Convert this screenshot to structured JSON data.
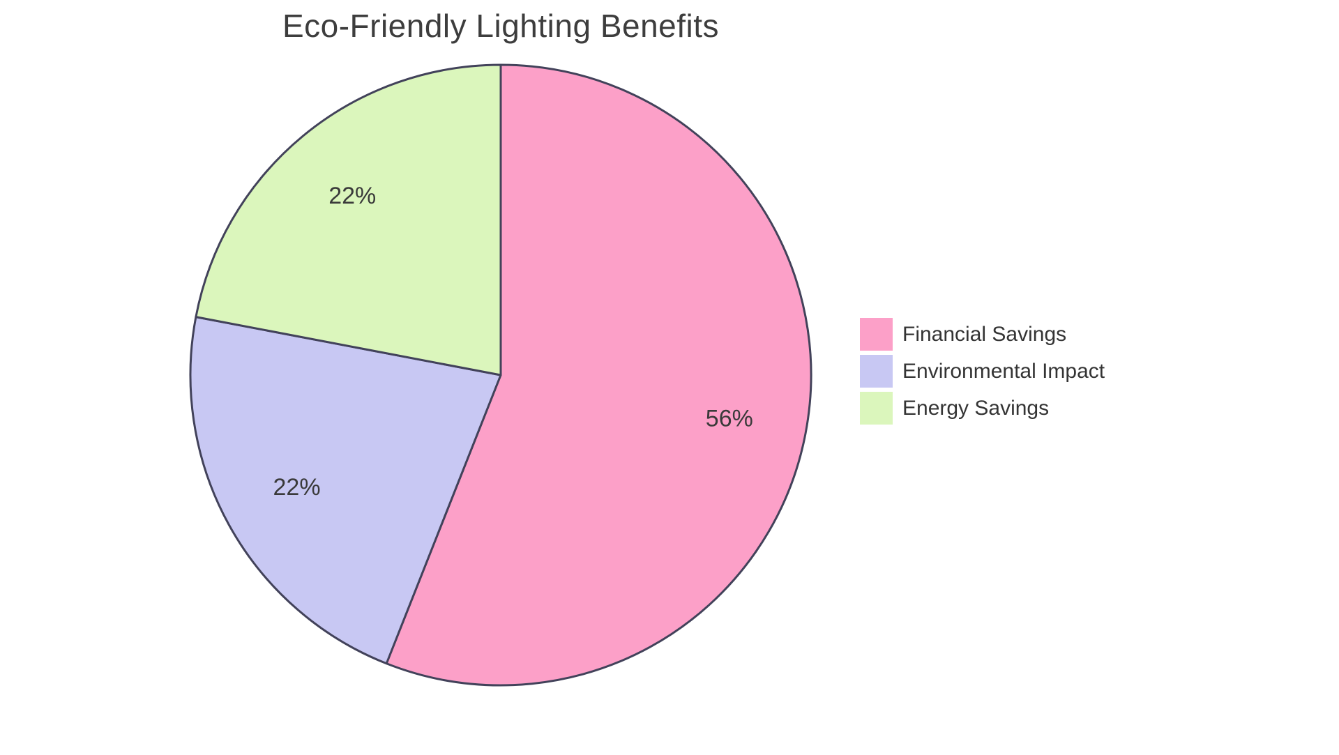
{
  "chart_data": {
    "type": "pie",
    "title": "Eco-Friendly Lighting Benefits",
    "labels": [
      "Financial Savings",
      "Environmental Impact",
      "Energy Savings"
    ],
    "values": [
      56,
      22,
      22
    ],
    "slice_labels": [
      "56%",
      "22%",
      "22%"
    ],
    "colors": [
      "#FCA0C8",
      "#C8C8F3",
      "#DBF6BC"
    ],
    "stroke_color": "#42425A",
    "slice_label_color": "#3A3A3A",
    "title_color": "#3D3D3D",
    "legend_position": "right",
    "start_angle_deg": 0,
    "direction": "clockwise",
    "background": "#FFFFFF"
  }
}
